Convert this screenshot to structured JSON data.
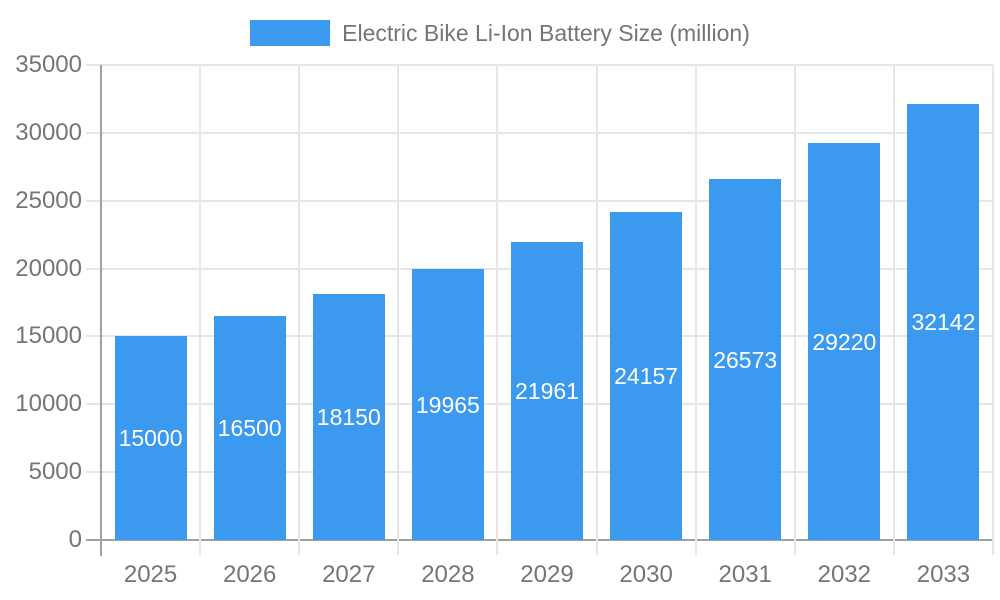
{
  "chart_data": {
    "type": "bar",
    "title": "Electric Bike Li-Ion Battery Size (million)",
    "categories": [
      "2025",
      "2026",
      "2027",
      "2028",
      "2029",
      "2030",
      "2031",
      "2032",
      "2033"
    ],
    "values": [
      15000,
      16500,
      18150,
      19965,
      21961,
      24157,
      26573,
      29220,
      32142
    ],
    "xlabel": "",
    "ylabel": "",
    "ylim": [
      0,
      35000
    ],
    "yticks": [
      0,
      5000,
      10000,
      15000,
      20000,
      25000,
      30000,
      35000
    ],
    "grid": true,
    "legend_position": "top-center",
    "bar_labels_position": "inside-center",
    "colors": {
      "bar": "#3B99EF",
      "grid": "#E6E6E6",
      "axis": "#A0A0A0",
      "tick_text": "#757575",
      "title_text": "#757575",
      "bar_label_text": "#FFFFFF",
      "background": "#FFFFFF"
    }
  }
}
